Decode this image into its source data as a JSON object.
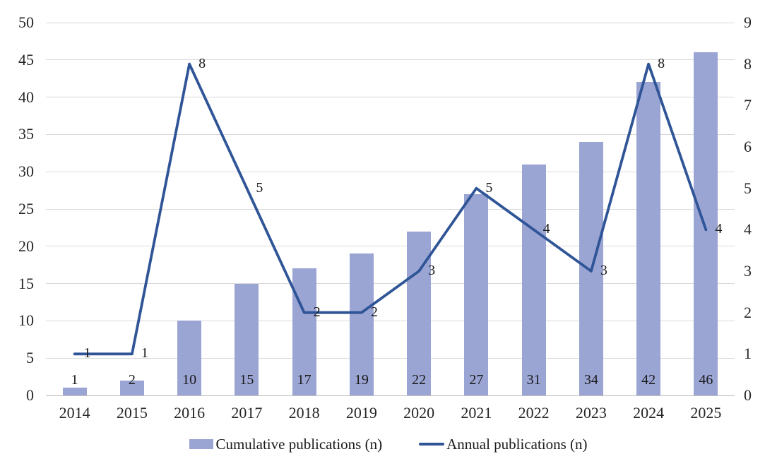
{
  "chart_data": {
    "type": "combo_bar_line",
    "title": "",
    "categories": [
      "2014",
      "2015",
      "2016",
      "2017",
      "2018",
      "2019",
      "2020",
      "2021",
      "2022",
      "2023",
      "2024",
      "2025"
    ],
    "series": [
      {
        "name": "Cumulative publications (n)",
        "type": "bar",
        "axis": "left",
        "color": "#9BA5D4",
        "values": [
          1,
          2,
          10,
          15,
          17,
          19,
          22,
          27,
          31,
          34,
          42,
          46
        ]
      },
      {
        "name": "Annual publications (n)",
        "type": "line",
        "axis": "right",
        "color": "#2F5597",
        "values": [
          1,
          1,
          8,
          5,
          2,
          2,
          3,
          5,
          4,
          3,
          8,
          4
        ]
      }
    ],
    "left_axis": {
      "min": 0,
      "max": 50,
      "tick_step": 5,
      "ticks": [
        0,
        5,
        10,
        15,
        20,
        25,
        30,
        35,
        40,
        45,
        50
      ]
    },
    "right_axis": {
      "min": 0,
      "max": 9,
      "tick_step": 1,
      "ticks": [
        0,
        1,
        2,
        3,
        4,
        5,
        6,
        7,
        8,
        9
      ]
    },
    "gridlines": "horizontal",
    "data_labels": true,
    "legend_position": "bottom"
  },
  "colors": {
    "grid": "#D9D9D9",
    "axis_line": "#BFBFBF",
    "text": "#262626",
    "background": "#FFFFFF"
  }
}
